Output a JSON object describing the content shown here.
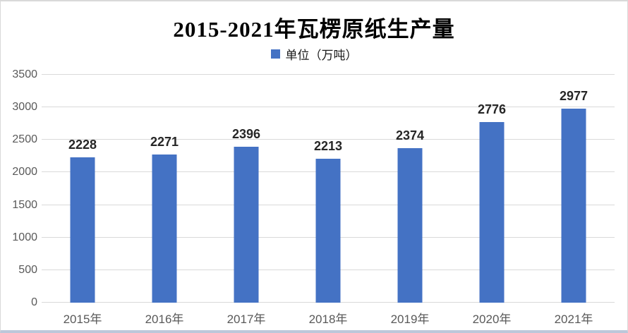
{
  "chart_data": {
    "type": "bar",
    "title": "2015-2021年瓦楞原纸生产量",
    "legend_label": "单位（万吨）",
    "legend_position": "top",
    "categories": [
      "2015年",
      "2016年",
      "2017年",
      "2018年",
      "2019年",
      "2020年",
      "2021年"
    ],
    "values": [
      2228,
      2271,
      2396,
      2213,
      2374,
      2776,
      2977
    ],
    "data_labels": [
      "2228",
      "2271",
      "2396",
      "2213",
      "2374",
      "2776",
      "2977"
    ],
    "ylim": [
      0,
      3500
    ],
    "yticks": [
      0,
      500,
      1000,
      1500,
      2000,
      2500,
      3000,
      3500
    ],
    "grid": true,
    "xlabel": "",
    "ylabel": ""
  },
  "colors": {
    "bar": "#4472c4",
    "gridline": "#d9d9d9",
    "axis_text": "#595959",
    "data_label_text": "#262626",
    "title_text": "#000000",
    "frame_border": "#d9d9d9",
    "bottom_border": "#bcc7da",
    "background": "#ffffff"
  }
}
